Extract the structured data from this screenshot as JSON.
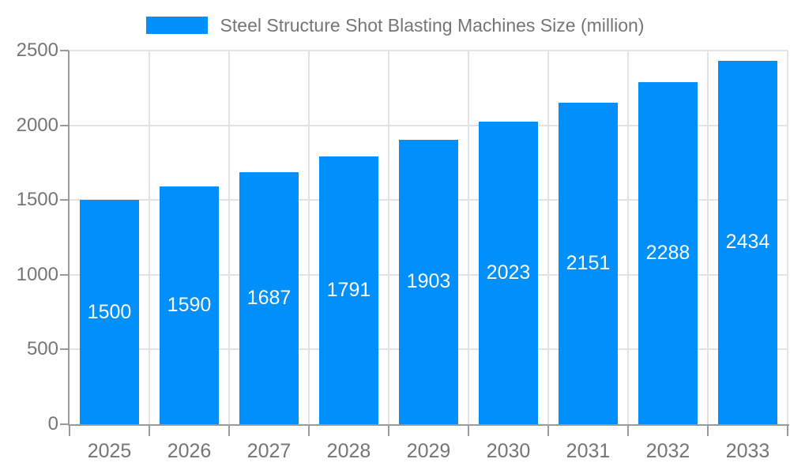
{
  "legend": {
    "label": "Steel Structure Shot Blasting Machines Size (million)"
  },
  "chart_data": {
    "type": "bar",
    "title": "Steel Structure Shot Blasting Machines Size (million)",
    "categories": [
      "2025",
      "2026",
      "2027",
      "2028",
      "2029",
      "2030",
      "2031",
      "2032",
      "2033"
    ],
    "values": [
      1500,
      1590,
      1687,
      1791,
      1903,
      2023,
      2151,
      2288,
      2434
    ],
    "xlabel": "",
    "ylabel": "",
    "ylim": [
      0,
      2500
    ],
    "yticks": [
      0,
      500,
      1000,
      1500,
      2000,
      2500
    ],
    "grid": true,
    "legend_position": "top",
    "bar_color": "#008ffb",
    "bar_label_color": "#ffffff",
    "axis_text_color": "#757575",
    "axis_line_color": "#9a9a9a",
    "gridline_color": "#e3e3e3",
    "background_color": "#ffffff"
  }
}
